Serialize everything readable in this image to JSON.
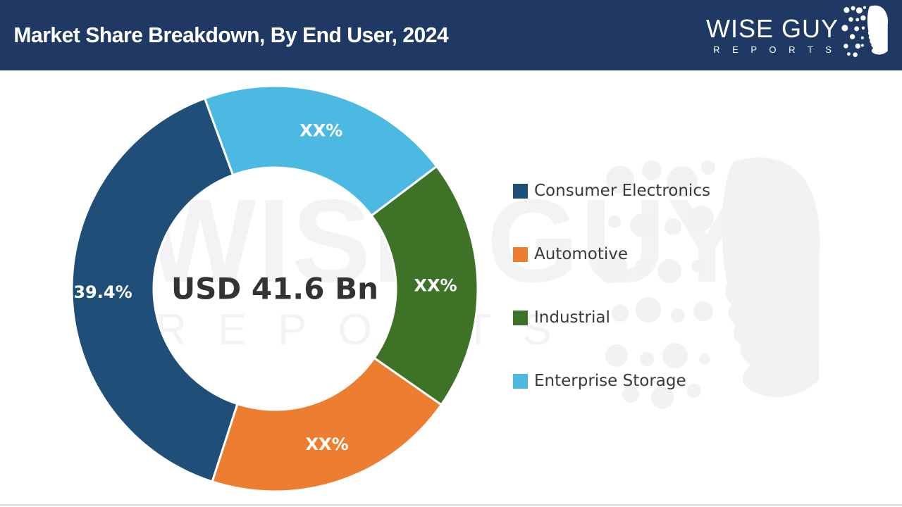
{
  "header": {
    "title": "Market Share Breakdown, By End User, 2024",
    "background_color": "#1F3864",
    "logo": {
      "line1": "WISE GUY",
      "line2": "R E P O R T S"
    }
  },
  "watermark": {
    "line1": "WISE GUY",
    "line2": "REPORTS"
  },
  "chart_data": {
    "type": "pie",
    "subtype": "donut",
    "title": "Market Share Breakdown, By End User, 2024",
    "center_label": "USD 41.6 Bn",
    "start_angle_deg": 110.2,
    "direction": "counterclockwise",
    "legend_position": "right",
    "series": [
      {
        "name": "Consumer Electronics",
        "value": 39.4,
        "label": "39.4%",
        "color": "#1F4E79"
      },
      {
        "name": "Automotive",
        "value": 20.3,
        "label": "XX%",
        "color": "#ED7D31"
      },
      {
        "name": "Industrial",
        "value": 20.0,
        "label": "XX%",
        "color": "#3E7327"
      },
      {
        "name": "Enterprise Storage",
        "value": 20.3,
        "label": "XX%",
        "color": "#4CB9E3"
      }
    ],
    "notes": "Segment values other than 39.4% are masked as XX% in the source image; numeric values for masked segments are estimates from arc angles."
  },
  "style": {
    "center_text_color": "#333333",
    "segment_label_color": "#ffffff",
    "legend_text_color": "#3a3a3a",
    "watermark_color": "#f3f3f5",
    "bottom_line_color": "#d9d9d9"
  }
}
